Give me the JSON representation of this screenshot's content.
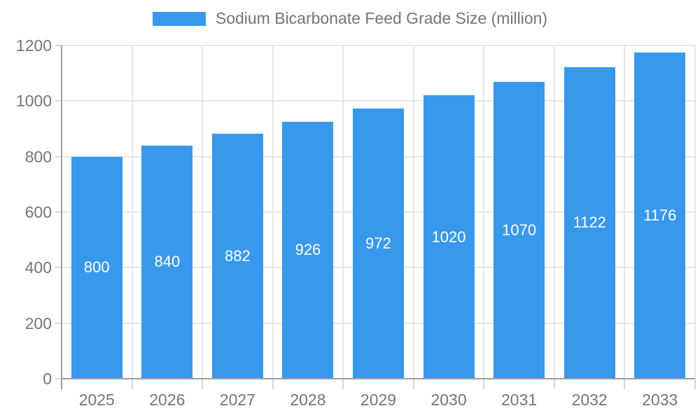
{
  "legend": {
    "label": "Sodium Bicarbonate Feed Grade Size (million)"
  },
  "chart_data": {
    "type": "bar",
    "title": "Sodium Bicarbonate Feed Grade Size (million)",
    "categories": [
      "2025",
      "2026",
      "2027",
      "2028",
      "2029",
      "2030",
      "2031",
      "2032",
      "2033"
    ],
    "series": [
      {
        "name": "Sodium Bicarbonate Feed Grade Size (million)",
        "values": [
          800,
          840,
          882,
          926,
          972,
          1020,
          1070,
          1122,
          1176
        ]
      }
    ],
    "xlabel": "",
    "ylabel": "",
    "ylim": [
      0,
      1200
    ],
    "yticks": [
      0,
      200,
      400,
      600,
      800,
      1000,
      1200
    ],
    "grid": true,
    "legend_position": "top",
    "bar_labels_visible": true,
    "colors": {
      "bar": "#3899EC",
      "bar_label": "#FFFFFF",
      "axis_text": "#757575",
      "grid_line": "#E6E6E6",
      "tick_line": "#D6D6D6",
      "axis_line": "#9E9E9E",
      "background": "#FFFFFF"
    }
  }
}
